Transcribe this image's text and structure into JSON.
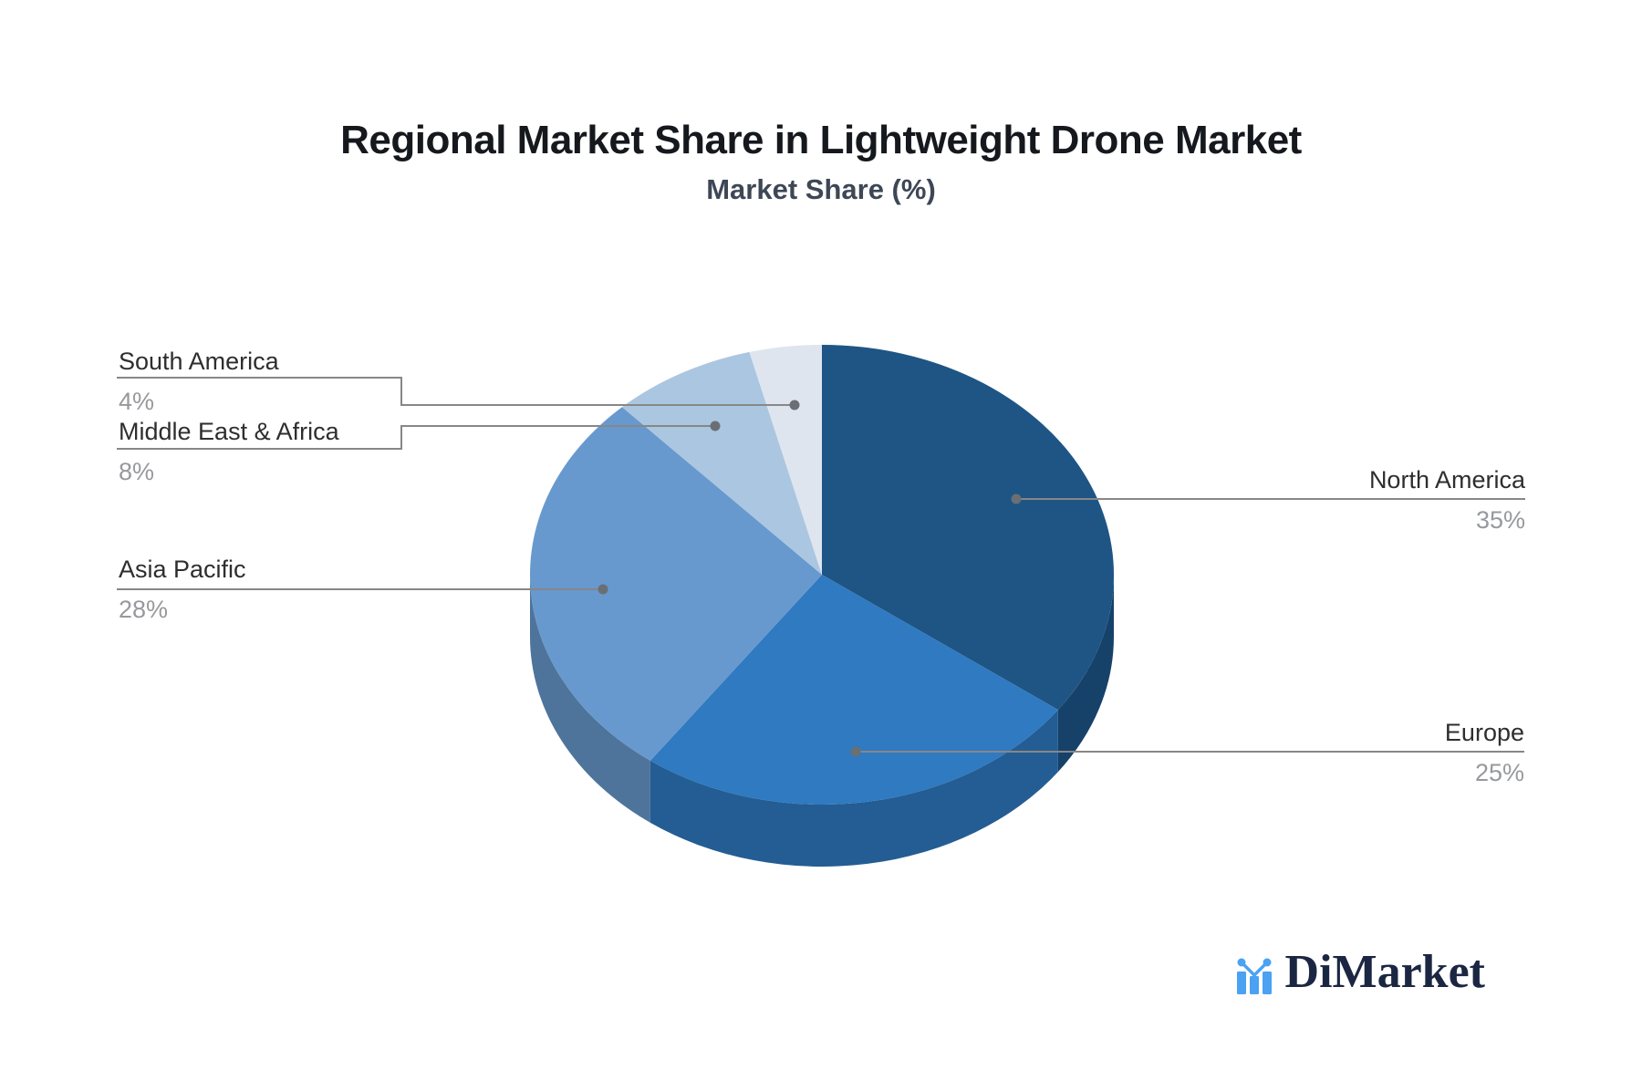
{
  "chart_data": {
    "type": "pie",
    "style": "3d",
    "title": "Regional Market Share in Lightweight Drone Market",
    "subtitle": "Market Share (%)",
    "unit": "%",
    "legend_position": "none",
    "label_style": "callout-lines-with-dots",
    "start_angle_deg": 0,
    "direction": "clockwise",
    "slices": [
      {
        "label": "North America",
        "value": 35,
        "value_label": "35%",
        "color": "#1E5585",
        "side_color": "#16426A"
      },
      {
        "label": "Europe",
        "value": 25,
        "value_label": "25%",
        "color": "#2F7AC0",
        "side_color": "#245D93"
      },
      {
        "label": "Asia Pacific",
        "value": 28,
        "value_label": "28%",
        "color": "#6799CE",
        "side_color": "#4E749C"
      },
      {
        "label": "Middle East & Africa",
        "value": 8,
        "value_label": "8%",
        "color": "#ABC6E0",
        "side_color": "#83A2C1"
      },
      {
        "label": "South America",
        "value": 4,
        "value_label": "4%",
        "color": "#DEE5EF",
        "side_color": "#B6C4D6"
      }
    ],
    "connector_color": "#878787",
    "dot_color": "#6b6f73"
  },
  "branding": {
    "logo_text": "DiMarket",
    "logo_text_color": "#1b2742",
    "logo_icon_color": "#4BA2F2"
  }
}
